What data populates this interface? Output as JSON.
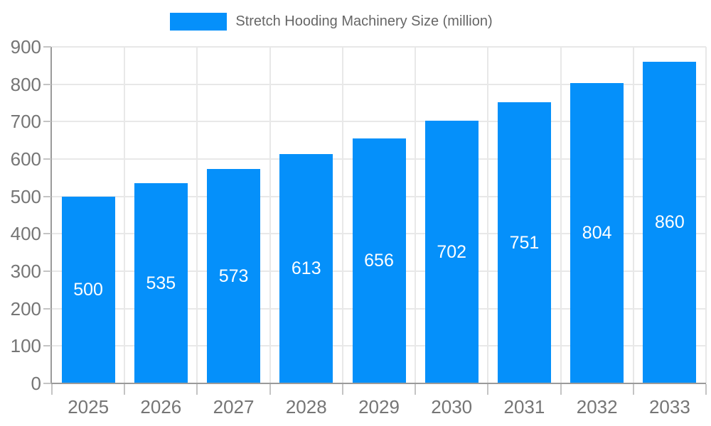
{
  "chart_data": {
    "type": "bar",
    "title": "Stretch Hooding Machinery Size (million)",
    "categories": [
      "2025",
      "2026",
      "2027",
      "2028",
      "2029",
      "2030",
      "2031",
      "2032",
      "2033"
    ],
    "series": [
      {
        "name": "Stretch Hooding Machinery Size (million)",
        "values": [
          500,
          535,
          573,
          613,
          656,
          702,
          751,
          804,
          860
        ]
      }
    ],
    "xlabel": "",
    "ylabel": "",
    "ylim": [
      0,
      900
    ],
    "ytick_step": 100,
    "yticks": [
      0,
      100,
      200,
      300,
      400,
      500,
      600,
      700,
      800,
      900
    ],
    "grid": true,
    "legend_position": "top",
    "bar_value_labels_visible": true
  },
  "colors": {
    "bar": "#0590FA",
    "bar_label": "#FFFFFF",
    "axis_text": "#757575",
    "legend_text": "#666666",
    "grid": "#E8E8E8",
    "axis_line": "#9A9A9A",
    "tick": "#C4C4C4",
    "background": "#FFFFFF"
  }
}
